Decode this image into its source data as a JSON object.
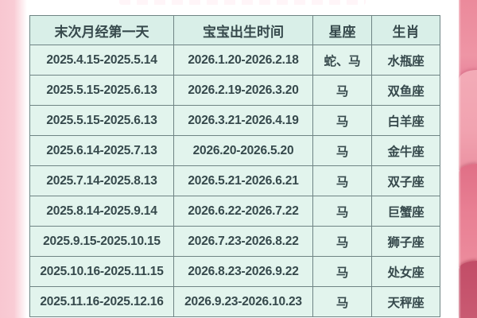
{
  "page": {
    "background_color": "#ffffff",
    "left_stripe_color": "#f8c7d1",
    "ribbon_colors": {
      "top": "#ee95a5",
      "upper_light": "#f1a3b0",
      "lower_mid": "#e87f93",
      "bottom_dark": "#c24d67"
    }
  },
  "table": {
    "colors": {
      "header_bg": "#d9efe8",
      "cell_bg": "#e2f4ed",
      "border": "#6f8484",
      "text": "#36494c"
    },
    "headers": [
      "末次月经第一天",
      "宝宝出生时间",
      "星座",
      "生肖"
    ],
    "rows": [
      [
        "2025.4.15-2025.5.14",
        "2026.1.20-2026.2.18",
        "蛇、马",
        "水瓶座"
      ],
      [
        "2025.5.15-2025.6.13",
        "2026.2.19-2026.3.20",
        "马",
        "双鱼座"
      ],
      [
        "2025.5.15-2025.6.13",
        "2026.3.21-2026.4.19",
        "马",
        "白羊座"
      ],
      [
        "2025.6.14-2025.7.13",
        "2026.20-2026.5.20",
        "马",
        "金牛座"
      ],
      [
        "2025.7.14-2025.8.13",
        "2026.5.21-2026.6.21",
        "马",
        "双子座"
      ],
      [
        "2025.8.14-2025.9.14",
        "2026.6.22-2026.7.22",
        "马",
        "巨蟹座"
      ],
      [
        "2025.9.15-2025.10.15",
        "2026.7.23-2026.8.22",
        "马",
        "狮子座"
      ],
      [
        "2025.10.16-2025.11.15",
        "2026.8.23-2026.9.22",
        "马",
        "处女座"
      ],
      [
        "2025.11.16-2025.12.16",
        "2026.9.23-2026.10.23",
        "马",
        "天秤座"
      ]
    ]
  }
}
